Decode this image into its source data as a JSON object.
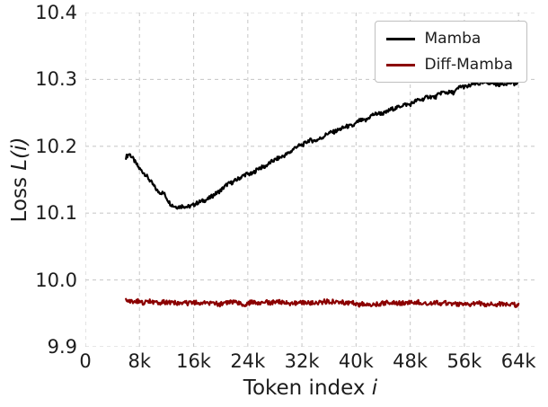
{
  "chart_data": {
    "type": "line",
    "title": "",
    "xlabel": {
      "prefix": "Token index ",
      "italic": "i"
    },
    "ylabel": {
      "prefix": "Loss ",
      "italic": "L(i)"
    },
    "xlim": [
      0,
      66500
    ],
    "ylim": [
      9.9,
      10.4
    ],
    "grid": "dashed",
    "legend_position": "upper right",
    "xticks": {
      "values": [
        0,
        8000,
        16000,
        24000,
        32000,
        40000,
        48000,
        56000,
        64000
      ],
      "labels": [
        "0",
        "8k",
        "16k",
        "24k",
        "32k",
        "40k",
        "48k",
        "56k",
        "64k"
      ]
    },
    "yticks": {
      "values": [
        9.9,
        10.0,
        10.1,
        10.2,
        10.3,
        10.4
      ],
      "labels": [
        "9.9",
        "10.0",
        "10.1",
        "10.2",
        "10.3",
        "10.4"
      ]
    },
    "series": [
      {
        "name": "Mamba",
        "color": "#000000",
        "linewidth": 2.2,
        "noise": {
          "fine": 0.003,
          "coarse": 0.004
        },
        "anchors": {
          "x": [
            6000,
            6500,
            8000,
            9000,
            10000,
            11000,
            12000,
            13000,
            14000,
            15000,
            16000,
            17000,
            18000,
            20000,
            22000,
            24000,
            26000,
            28000,
            30000,
            32000,
            34000,
            36000,
            38000,
            40000,
            42000,
            44000,
            46000,
            48000,
            50000,
            52000,
            54000,
            56000,
            58000,
            60000,
            62000,
            64000
          ],
          "y": [
            10.188,
            10.192,
            10.17,
            10.158,
            10.145,
            10.132,
            10.122,
            10.113,
            10.108,
            10.107,
            10.11,
            10.117,
            10.122,
            10.133,
            10.146,
            10.157,
            10.168,
            10.18,
            10.191,
            10.2,
            10.21,
            10.218,
            10.226,
            10.234,
            10.243,
            10.251,
            10.258,
            10.264,
            10.271,
            10.277,
            10.283,
            10.288,
            10.292,
            10.295,
            10.296,
            10.297
          ]
        }
      },
      {
        "name": "Diff-Mamba",
        "color": "#8B0000",
        "linewidth": 2.2,
        "noise": {
          "fine": 0.0035,
          "coarse": 0.002
        },
        "anchors": {
          "x": [
            6000,
            12000,
            20000,
            28000,
            36000,
            44000,
            52000,
            58000,
            64000
          ],
          "y": [
            9.969,
            9.966,
            9.965,
            9.966,
            9.967,
            9.964,
            9.966,
            9.964,
            9.963
          ]
        }
      }
    ]
  }
}
